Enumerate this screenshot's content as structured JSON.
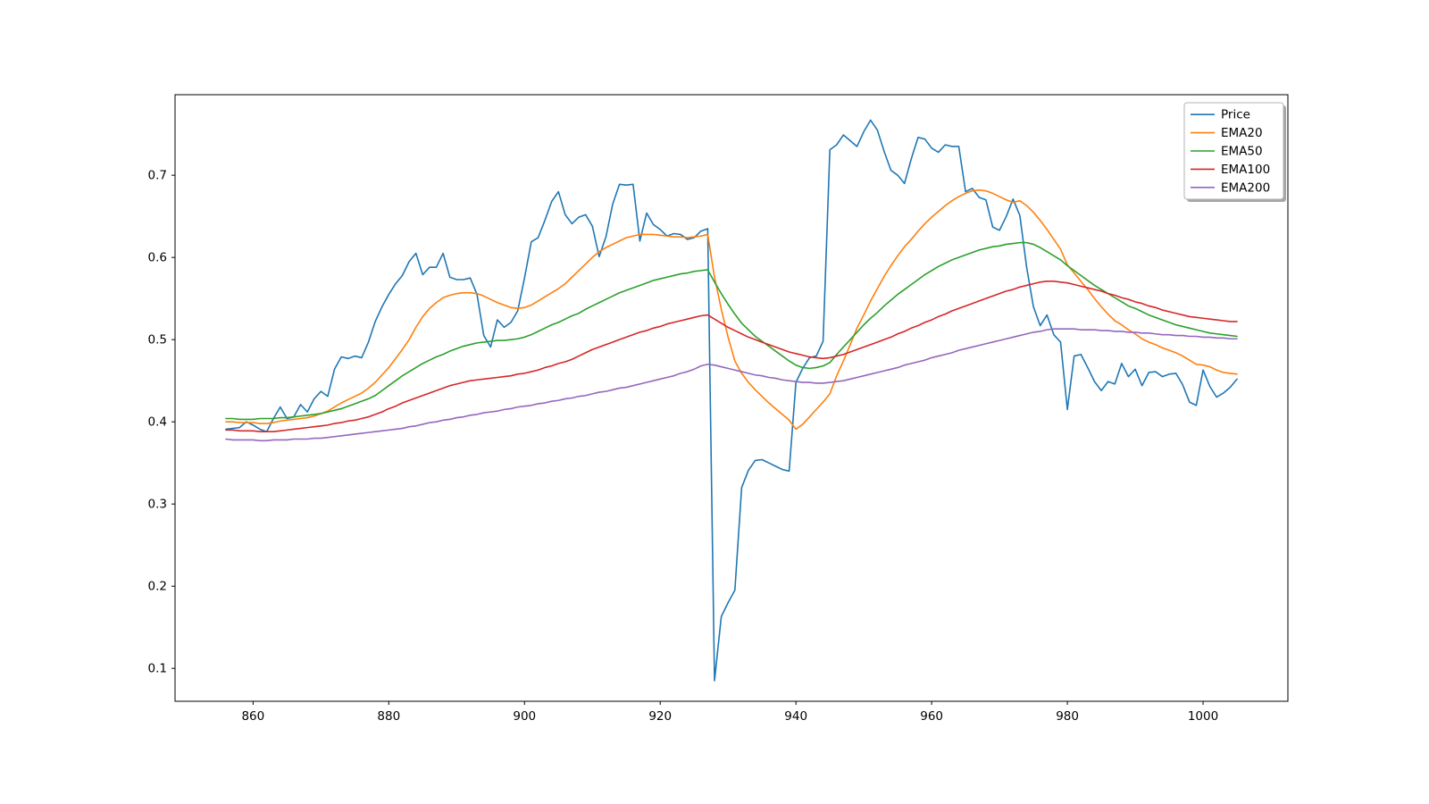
{
  "figure": {
    "background": "#ffffff",
    "frame_color": "#000000"
  },
  "chart_data": {
    "type": "line",
    "title": "",
    "xlabel": "",
    "ylabel": "",
    "grid": false,
    "legend_position": "upper right",
    "legend_style": "fancybox-with-shadow",
    "xlim": [
      848.5,
      1012.5
    ],
    "ylim": [
      0.06,
      0.798
    ],
    "x_ticks": [
      860,
      880,
      900,
      920,
      940,
      960,
      980,
      1000
    ],
    "y_ticks": [
      0.1,
      0.2,
      0.3,
      0.4,
      0.5,
      0.6,
      0.7
    ],
    "x_start": 856,
    "x_step": 1,
    "series": [
      {
        "name": "Price",
        "color": "#1f77b4",
        "values": [
          0.391,
          0.392,
          0.393,
          0.4,
          0.396,
          0.391,
          0.388,
          0.404,
          0.418,
          0.404,
          0.406,
          0.421,
          0.412,
          0.428,
          0.437,
          0.431,
          0.464,
          0.479,
          0.477,
          0.48,
          0.478,
          0.497,
          0.522,
          0.54,
          0.555,
          0.568,
          0.578,
          0.595,
          0.605,
          0.579,
          0.588,
          0.588,
          0.605,
          0.576,
          0.573,
          0.573,
          0.575,
          0.555,
          0.505,
          0.491,
          0.524,
          0.515,
          0.521,
          0.535,
          0.575,
          0.619,
          0.624,
          0.645,
          0.668,
          0.68,
          0.652,
          0.641,
          0.649,
          0.652,
          0.638,
          0.601,
          0.625,
          0.665,
          0.689,
          0.688,
          0.689,
          0.62,
          0.654,
          0.64,
          0.634,
          0.626,
          0.629,
          0.628,
          0.622,
          0.624,
          0.632,
          0.635,
          0.085,
          0.163,
          0.18,
          0.195,
          0.32,
          0.341,
          0.353,
          0.354,
          0.35,
          0.346,
          0.342,
          0.34,
          0.448,
          0.465,
          0.478,
          0.48,
          0.498,
          0.731,
          0.737,
          0.749,
          0.742,
          0.735,
          0.753,
          0.767,
          0.755,
          0.729,
          0.706,
          0.7,
          0.69,
          0.72,
          0.746,
          0.744,
          0.733,
          0.728,
          0.737,
          0.735,
          0.735,
          0.68,
          0.684,
          0.673,
          0.67,
          0.637,
          0.633,
          0.65,
          0.671,
          0.651,
          0.588,
          0.54,
          0.517,
          0.53,
          0.506,
          0.497,
          0.415,
          0.48,
          0.482,
          0.466,
          0.449,
          0.438,
          0.449,
          0.446,
          0.471,
          0.455,
          0.464,
          0.444,
          0.46,
          0.461,
          0.455,
          0.458,
          0.459,
          0.445,
          0.424,
          0.42,
          0.463,
          0.443,
          0.43,
          0.435,
          0.442,
          0.452
        ]
      },
      {
        "name": "EMA20",
        "color": "#ff7f0e",
        "values": [
          0.4,
          0.4,
          0.399,
          0.399,
          0.399,
          0.398,
          0.398,
          0.399,
          0.401,
          0.402,
          0.403,
          0.404,
          0.405,
          0.407,
          0.41,
          0.413,
          0.418,
          0.423,
          0.427,
          0.431,
          0.435,
          0.441,
          0.448,
          0.457,
          0.466,
          0.477,
          0.488,
          0.5,
          0.515,
          0.528,
          0.538,
          0.545,
          0.551,
          0.554,
          0.556,
          0.557,
          0.557,
          0.556,
          0.553,
          0.549,
          0.545,
          0.542,
          0.539,
          0.538,
          0.539,
          0.542,
          0.547,
          0.552,
          0.557,
          0.562,
          0.568,
          0.576,
          0.584,
          0.592,
          0.6,
          0.607,
          0.612,
          0.616,
          0.62,
          0.624,
          0.626,
          0.628,
          0.628,
          0.628,
          0.627,
          0.626,
          0.625,
          0.625,
          0.624,
          0.625,
          0.626,
          0.628,
          0.576,
          0.537,
          0.503,
          0.474,
          0.459,
          0.448,
          0.439,
          0.431,
          0.423,
          0.416,
          0.409,
          0.402,
          0.391,
          0.397,
          0.406,
          0.415,
          0.424,
          0.434,
          0.456,
          0.474,
          0.494,
          0.514,
          0.53,
          0.547,
          0.562,
          0.577,
          0.59,
          0.602,
          0.613,
          0.622,
          0.632,
          0.641,
          0.649,
          0.656,
          0.663,
          0.669,
          0.674,
          0.678,
          0.681,
          0.682,
          0.681,
          0.678,
          0.674,
          0.67,
          0.667,
          0.669,
          0.663,
          0.655,
          0.645,
          0.634,
          0.622,
          0.61,
          0.591,
          0.581,
          0.571,
          0.561,
          0.55,
          0.54,
          0.531,
          0.523,
          0.518,
          0.512,
          0.507,
          0.501,
          0.497,
          0.494,
          0.49,
          0.487,
          0.484,
          0.48,
          0.475,
          0.47,
          0.469,
          0.467,
          0.463,
          0.46,
          0.459,
          0.458
        ]
      },
      {
        "name": "EMA50",
        "color": "#2ca02c",
        "values": [
          0.404,
          0.404,
          0.403,
          0.403,
          0.403,
          0.404,
          0.404,
          0.404,
          0.405,
          0.405,
          0.406,
          0.407,
          0.408,
          0.409,
          0.41,
          0.412,
          0.414,
          0.416,
          0.419,
          0.422,
          0.425,
          0.428,
          0.432,
          0.438,
          0.444,
          0.45,
          0.456,
          0.461,
          0.466,
          0.471,
          0.475,
          0.479,
          0.482,
          0.486,
          0.489,
          0.492,
          0.494,
          0.496,
          0.497,
          0.498,
          0.499,
          0.499,
          0.5,
          0.501,
          0.503,
          0.506,
          0.51,
          0.514,
          0.518,
          0.521,
          0.525,
          0.529,
          0.532,
          0.537,
          0.541,
          0.545,
          0.549,
          0.553,
          0.557,
          0.56,
          0.563,
          0.566,
          0.569,
          0.572,
          0.574,
          0.576,
          0.578,
          0.58,
          0.581,
          0.583,
          0.584,
          0.585,
          0.57,
          0.556,
          0.543,
          0.531,
          0.52,
          0.512,
          0.504,
          0.498,
          0.492,
          0.486,
          0.48,
          0.474,
          0.469,
          0.466,
          0.465,
          0.466,
          0.468,
          0.472,
          0.482,
          0.491,
          0.5,
          0.509,
          0.518,
          0.526,
          0.533,
          0.541,
          0.548,
          0.555,
          0.561,
          0.567,
          0.573,
          0.579,
          0.584,
          0.589,
          0.593,
          0.597,
          0.6,
          0.603,
          0.606,
          0.609,
          0.611,
          0.613,
          0.614,
          0.616,
          0.617,
          0.618,
          0.618,
          0.616,
          0.612,
          0.607,
          0.602,
          0.597,
          0.59,
          0.584,
          0.578,
          0.572,
          0.566,
          0.561,
          0.556,
          0.551,
          0.546,
          0.541,
          0.538,
          0.534,
          0.53,
          0.527,
          0.524,
          0.521,
          0.518,
          0.516,
          0.514,
          0.512,
          0.51,
          0.508,
          0.507,
          0.506,
          0.505,
          0.504
        ]
      },
      {
        "name": "EMA100",
        "color": "#d62728",
        "values": [
          0.39,
          0.39,
          0.389,
          0.389,
          0.389,
          0.388,
          0.388,
          0.388,
          0.389,
          0.39,
          0.391,
          0.392,
          0.393,
          0.394,
          0.395,
          0.396,
          0.398,
          0.399,
          0.401,
          0.402,
          0.404,
          0.406,
          0.409,
          0.412,
          0.416,
          0.419,
          0.423,
          0.426,
          0.429,
          0.432,
          0.435,
          0.438,
          0.441,
          0.444,
          0.446,
          0.448,
          0.45,
          0.451,
          0.452,
          0.453,
          0.454,
          0.455,
          0.456,
          0.458,
          0.459,
          0.461,
          0.463,
          0.466,
          0.468,
          0.471,
          0.473,
          0.476,
          0.48,
          0.484,
          0.488,
          0.491,
          0.494,
          0.497,
          0.5,
          0.503,
          0.506,
          0.509,
          0.511,
          0.514,
          0.516,
          0.519,
          0.521,
          0.523,
          0.525,
          0.527,
          0.529,
          0.53,
          0.525,
          0.52,
          0.515,
          0.511,
          0.507,
          0.503,
          0.5,
          0.497,
          0.494,
          0.491,
          0.488,
          0.485,
          0.483,
          0.481,
          0.479,
          0.478,
          0.477,
          0.478,
          0.48,
          0.482,
          0.485,
          0.488,
          0.491,
          0.494,
          0.497,
          0.5,
          0.503,
          0.507,
          0.51,
          0.514,
          0.517,
          0.521,
          0.524,
          0.528,
          0.531,
          0.535,
          0.538,
          0.541,
          0.544,
          0.547,
          0.55,
          0.553,
          0.556,
          0.559,
          0.561,
          0.564,
          0.566,
          0.568,
          0.57,
          0.571,
          0.571,
          0.57,
          0.569,
          0.567,
          0.565,
          0.563,
          0.561,
          0.559,
          0.556,
          0.554,
          0.551,
          0.549,
          0.546,
          0.544,
          0.541,
          0.539,
          0.536,
          0.534,
          0.532,
          0.53,
          0.528,
          0.527,
          0.526,
          0.525,
          0.524,
          0.523,
          0.522,
          0.522
        ]
      },
      {
        "name": "EMA200",
        "color": "#9467bd",
        "values": [
          0.379,
          0.378,
          0.378,
          0.378,
          0.378,
          0.377,
          0.377,
          0.378,
          0.378,
          0.378,
          0.379,
          0.379,
          0.379,
          0.38,
          0.38,
          0.381,
          0.382,
          0.383,
          0.384,
          0.385,
          0.386,
          0.387,
          0.388,
          0.389,
          0.39,
          0.391,
          0.392,
          0.394,
          0.395,
          0.397,
          0.399,
          0.4,
          0.402,
          0.403,
          0.405,
          0.406,
          0.408,
          0.409,
          0.411,
          0.412,
          0.413,
          0.415,
          0.416,
          0.418,
          0.419,
          0.42,
          0.422,
          0.423,
          0.425,
          0.426,
          0.428,
          0.429,
          0.431,
          0.432,
          0.434,
          0.436,
          0.437,
          0.439,
          0.441,
          0.442,
          0.444,
          0.446,
          0.448,
          0.45,
          0.452,
          0.454,
          0.456,
          0.459,
          0.461,
          0.464,
          0.468,
          0.47,
          0.469,
          0.467,
          0.465,
          0.463,
          0.461,
          0.459,
          0.457,
          0.456,
          0.454,
          0.453,
          0.451,
          0.45,
          0.449,
          0.448,
          0.448,
          0.447,
          0.447,
          0.448,
          0.449,
          0.45,
          0.452,
          0.454,
          0.456,
          0.458,
          0.46,
          0.462,
          0.464,
          0.466,
          0.469,
          0.471,
          0.473,
          0.475,
          0.478,
          0.48,
          0.482,
          0.484,
          0.487,
          0.489,
          0.491,
          0.493,
          0.495,
          0.497,
          0.499,
          0.501,
          0.503,
          0.505,
          0.507,
          0.509,
          0.51,
          0.512,
          0.513,
          0.513,
          0.513,
          0.513,
          0.512,
          0.512,
          0.512,
          0.511,
          0.511,
          0.51,
          0.51,
          0.509,
          0.509,
          0.508,
          0.508,
          0.507,
          0.506,
          0.506,
          0.505,
          0.505,
          0.504,
          0.504,
          0.503,
          0.503,
          0.502,
          0.502,
          0.501,
          0.501
        ]
      }
    ]
  }
}
